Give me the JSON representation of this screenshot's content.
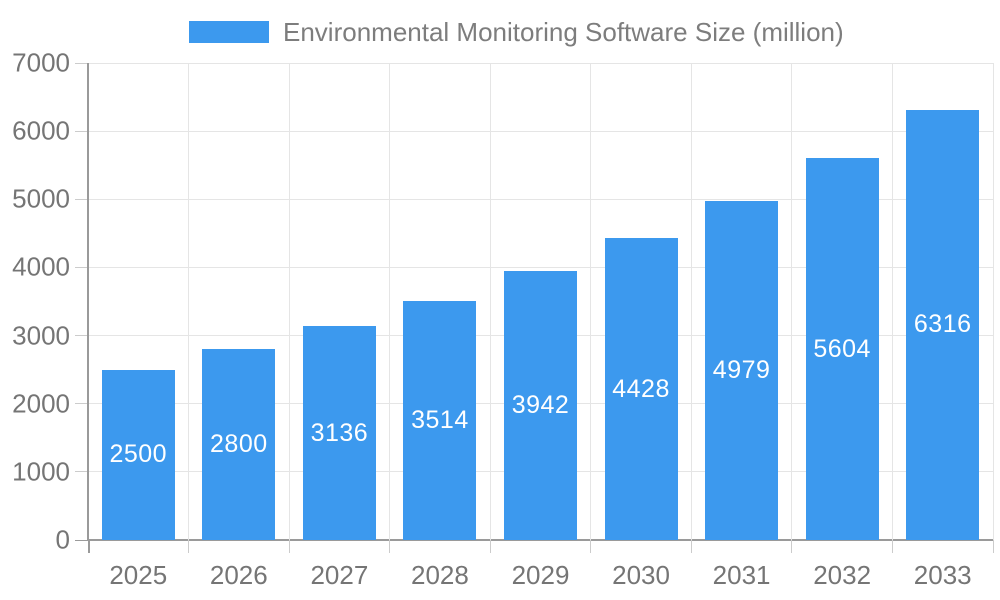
{
  "legend": {
    "label": "Environmental Monitoring Software Size (million)"
  },
  "chart_data": {
    "type": "bar",
    "title": "Environmental Monitoring Software Size (million)",
    "categories": [
      "2025",
      "2026",
      "2027",
      "2028",
      "2029",
      "2030",
      "2031",
      "2032",
      "2033"
    ],
    "values": [
      2500,
      2800,
      3136,
      3514,
      3942,
      4428,
      4979,
      5604,
      6316
    ],
    "xlabel": "",
    "ylabel": "",
    "ylim": [
      0,
      7000
    ],
    "yticks": [
      0,
      1000,
      2000,
      3000,
      4000,
      5000,
      6000,
      7000
    ],
    "grid": true,
    "legend_position": "top",
    "value_labels": "inside-center"
  },
  "colors": {
    "bar": "#3C99EE",
    "grid": "#e5e5e5",
    "axis": "#9a9a9a",
    "tick": "#cccccc",
    "text": "#757575",
    "value_label": "#ffffff",
    "background": "#ffffff"
  }
}
